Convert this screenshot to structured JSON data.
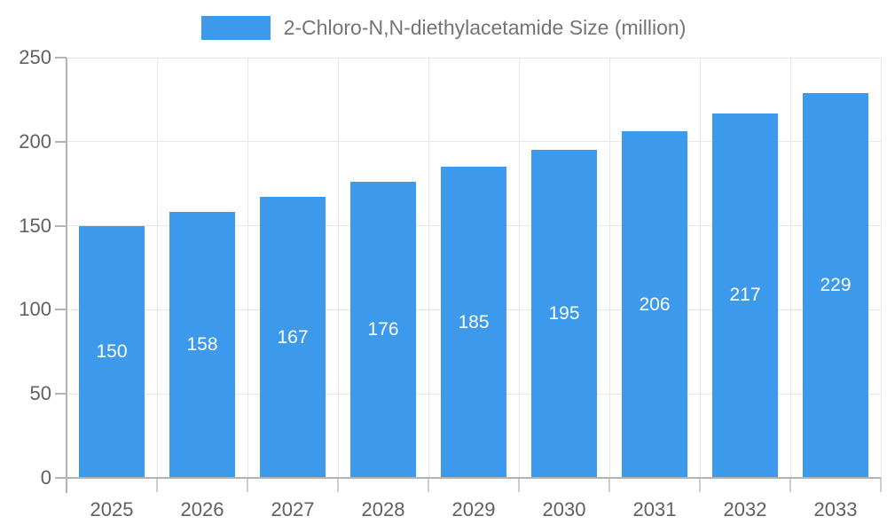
{
  "chart_data": {
    "type": "bar",
    "title": "2-Chloro-N,N-diethylacetamide Size (million)",
    "categories": [
      "2025",
      "2026",
      "2027",
      "2028",
      "2029",
      "2030",
      "2031",
      "2032",
      "2033"
    ],
    "values": [
      150,
      158,
      167,
      176,
      185,
      195,
      206,
      217,
      229
    ],
    "series": [
      {
        "name": "2-Chloro-N,N-diethylacetamide Size (million)",
        "values": [
          150,
          158,
          167,
          176,
          185,
          195,
          206,
          217,
          229
        ]
      }
    ],
    "xlabel": "",
    "ylabel": "",
    "ylim": [
      0,
      250
    ],
    "yticks": [
      0,
      50,
      100,
      150,
      200,
      250
    ],
    "grid": true,
    "legend_position": "top-center",
    "value_labels": "inside-center-white",
    "colors": {
      "bar": "#3D99EB",
      "value_label": "#ffffff",
      "gridline": "#e7e7e7",
      "axis_line": "#b3b3b3",
      "tick_label": "#606060",
      "legend_text": "#747474",
      "background": "#ffffff"
    }
  }
}
